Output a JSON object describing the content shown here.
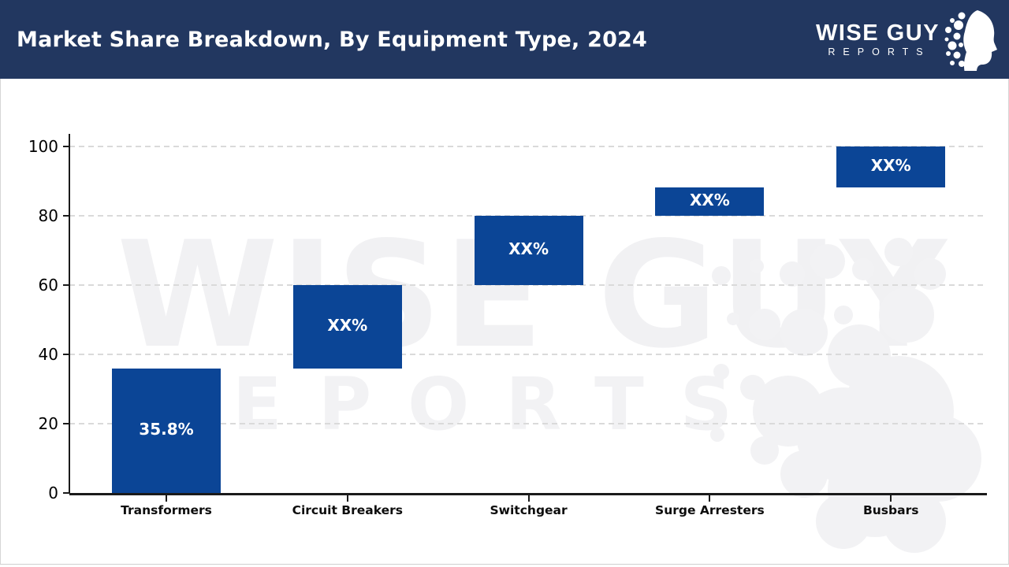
{
  "header": {
    "title": "Market Share Breakdown, By Equipment Type, 2024",
    "logo": {
      "name": "WISE GUY",
      "subtitle": "REPORTS"
    }
  },
  "watermark": {
    "line1": "WISE GUY",
    "line2": "REPORTS"
  },
  "colors": {
    "header_bg": "#223760",
    "bar": "#0B4596",
    "grid": "#dadada",
    "axis": "#1a1a1a",
    "bar_label": "#ffffff"
  },
  "chart_data": {
    "type": "bar",
    "subtype": "waterfall",
    "title": "Market Share Breakdown, By Equipment Type, 2024",
    "categories": [
      "Transformers",
      "Circuit Breakers",
      "Switchgear",
      "Surge Arresters",
      "Busbars"
    ],
    "bars": [
      {
        "category": "Transformers",
        "start": 0,
        "end": 35.8,
        "label": "35.8%"
      },
      {
        "category": "Circuit Breakers",
        "start": 35.8,
        "end": 60,
        "label": "XX%"
      },
      {
        "category": "Switchgear",
        "start": 60,
        "end": 80,
        "label": "XX%"
      },
      {
        "category": "Surge Arresters",
        "start": 80,
        "end": 88.2,
        "label": "XX%"
      },
      {
        "category": "Busbars",
        "start": 88.2,
        "end": 100,
        "label": "XX%"
      }
    ],
    "xlabel": "",
    "ylabel": "",
    "ylim": [
      0,
      100
    ],
    "yticks": [
      0,
      20,
      40,
      60,
      80,
      100
    ],
    "grid": true,
    "legend": false
  }
}
